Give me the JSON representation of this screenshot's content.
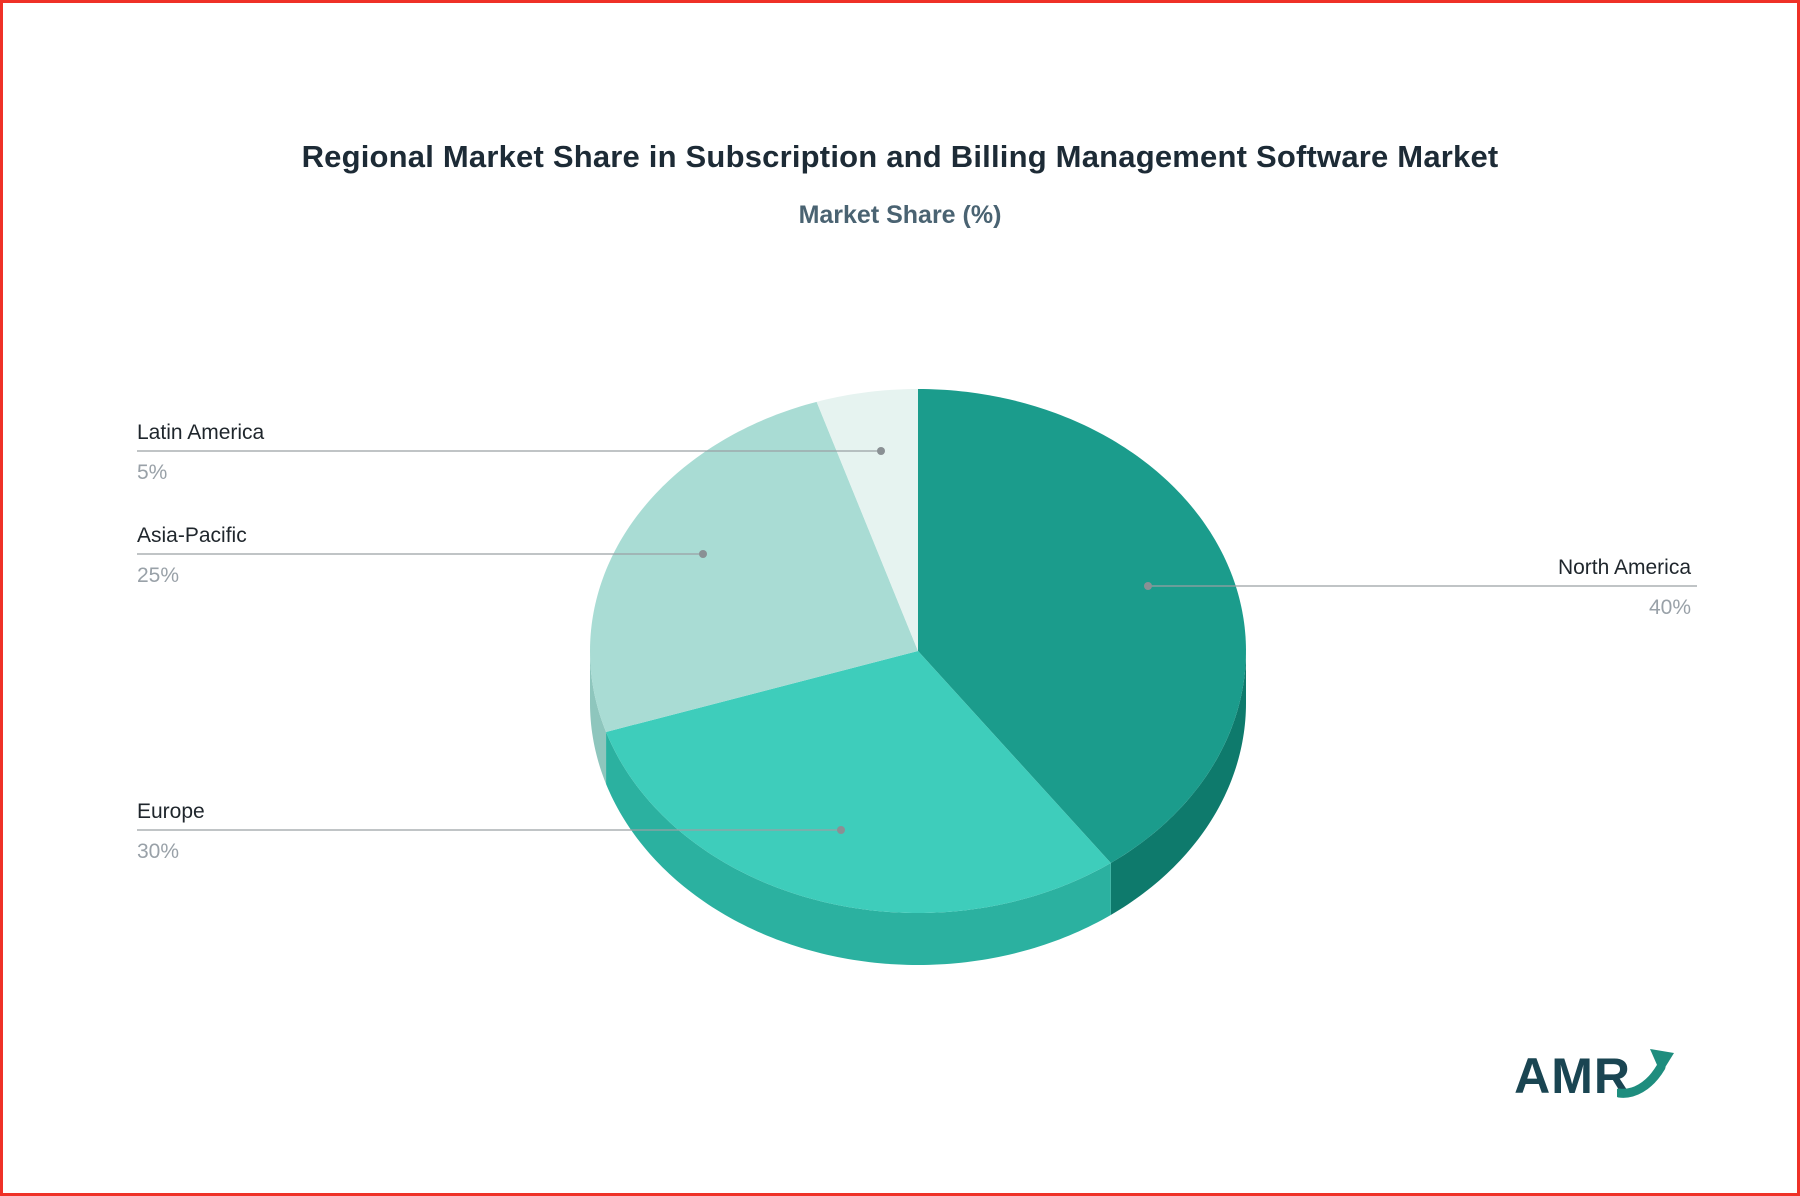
{
  "chart_data": {
    "type": "pie",
    "title": "Regional Market Share in Subscription and Billing Management Software Market",
    "subtitle": "Market Share (%)",
    "unit": "%",
    "effect_3d": true,
    "start_angle_deg": -90,
    "direction": "clockwise",
    "legend_position": "none",
    "slices": [
      {
        "label": "North America",
        "value": 40,
        "value_label": "40%",
        "color": "#1b9c8c",
        "side_color": "#0e7a6c"
      },
      {
        "label": "Europe",
        "value": 30,
        "value_label": "30%",
        "color": "#3ecdbb",
        "side_color": "#2bb1a0"
      },
      {
        "label": "Asia-Pacific",
        "value": 25,
        "value_label": "25%",
        "color": "#a9dcd4",
        "side_color": "#8ec6bd"
      },
      {
        "label": "Latin America",
        "value": 5,
        "value_label": "5%",
        "color": "#e6f3f0",
        "side_color": "#cde4e0"
      }
    ],
    "leader_line_color": "#9aa0a3",
    "label_color": "#1f262c",
    "value_color": "#99a1a8"
  },
  "logo": {
    "text": "AMR"
  }
}
